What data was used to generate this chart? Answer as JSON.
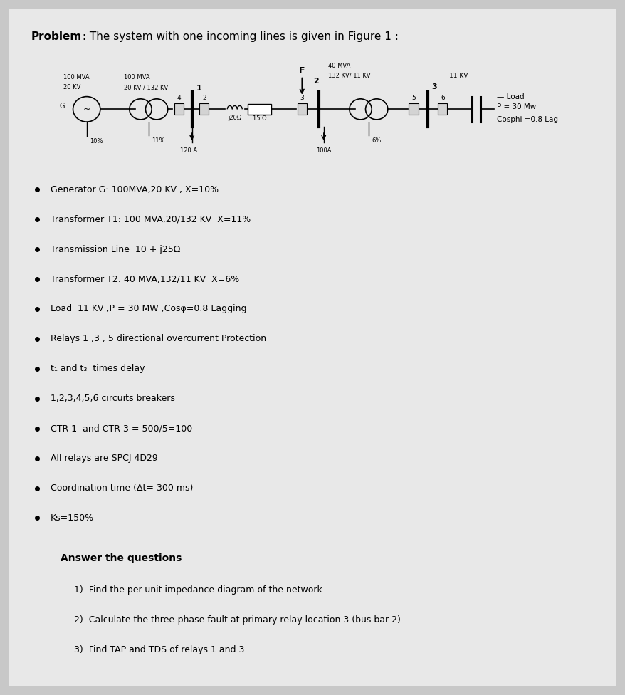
{
  "background_color": "#c8c8c8",
  "paper_color": "#e8e8e8",
  "title_bold": "Problem",
  "title_rest": " : The system with one incoming lines is given in Figure 1 :",
  "bullet_points": [
    "Generator G: 100MVA,20 KV , X=10%",
    "Transformer T1: 100 MVA,20/132 KV  X=11%",
    "Transmission Line  10 + j25Ω",
    "Transformer T2: 40 MVA,132/11 KV  X=6%",
    "Load  11 KV ,P = 30 MW ,Cosφ=0.8 Lagging",
    "Relays 1 ,3 , 5 directional overcurrent Protection",
    "t₁ and t₃  times delay",
    "1,2,3,4,5,6 circuits breakers",
    "CTR 1  and CTR 3 = 500/5=100",
    "All relays are SPCJ 4D29",
    "Coordination time (Δt= 300 ms)",
    "Ks=150%"
  ],
  "answer_header": "Answer the questions",
  "questions": [
    "1)  Find the per-unit impedance diagram of the network",
    "2)  Calculate the three-phase fault at primary relay location 3 (bus bar 2) .",
    "3)  Find TAP and TDS of relays 1 and 3."
  ]
}
